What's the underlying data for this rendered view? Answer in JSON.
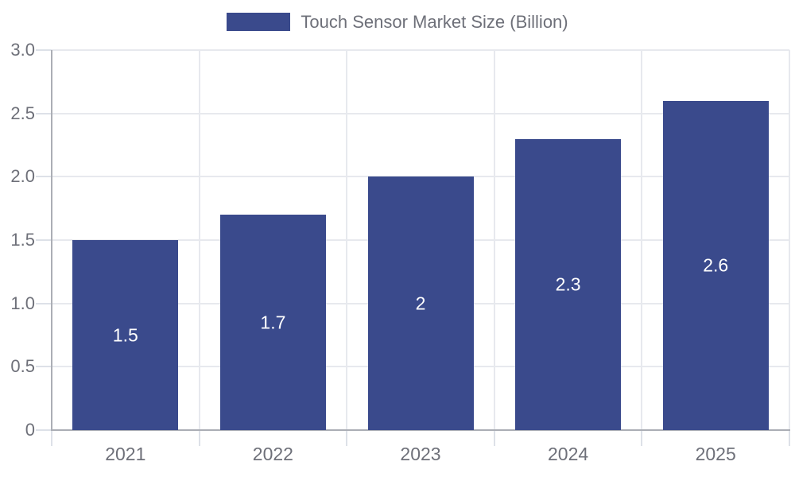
{
  "legend": {
    "label": "Touch Sensor Market Size (Billion)"
  },
  "chart_data": {
    "type": "bar",
    "title": "Touch Sensor Market Size (Billion)",
    "categories": [
      "2021",
      "2022",
      "2023",
      "2024",
      "2025"
    ],
    "series": [
      {
        "name": "Touch Sensor Market Size (Billion)",
        "values": [
          1.5,
          1.7,
          2,
          2.3,
          2.6
        ]
      }
    ],
    "value_labels": [
      "1.5",
      "1.7",
      "2",
      "2.3",
      "2.6"
    ],
    "xlabel": "",
    "ylabel": "",
    "ylim": [
      0,
      3.0
    ],
    "ytick_step": 0.5,
    "ytick_labels": [
      "0",
      "0.5",
      "1.0",
      "1.5",
      "2.0",
      "2.5",
      "3.0"
    ],
    "grid": true,
    "legend_position": "top-center"
  },
  "colors": {
    "bar": "#3a4a8c",
    "value_label": "#ffffff",
    "axis_line": "#abaeb5",
    "grid_line": "#e7e9ee",
    "tick_line": "#dde1e8",
    "label_text": "#6e7079",
    "background": "#ffffff"
  }
}
